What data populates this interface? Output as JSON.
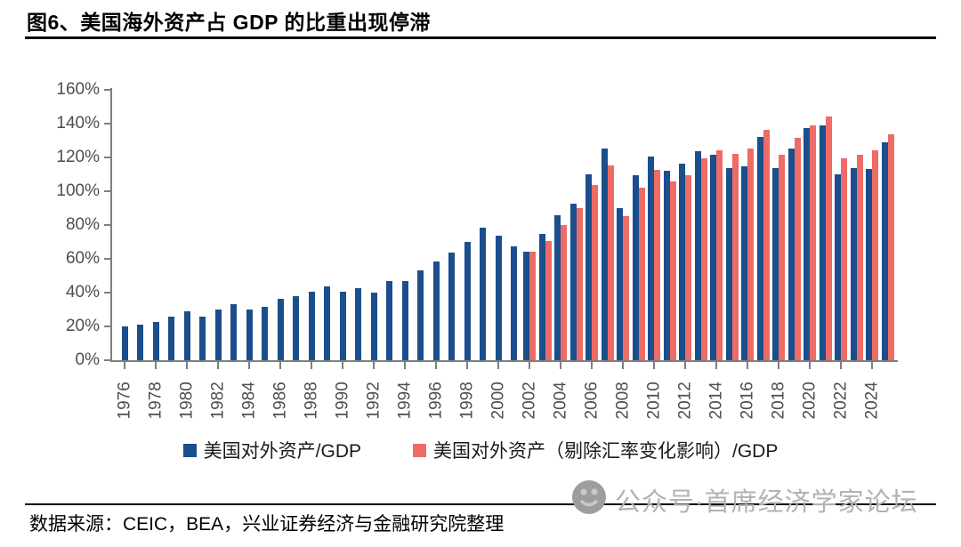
{
  "title": "图6、美国海外资产占 GDP 的比重出现停滞",
  "source_note": "数据来源：CEIC，BEA，兴业证券经济与金融研究院整理",
  "watermark": {
    "icon": "wechat-account-logo",
    "text": "公众号·首席经济学家论坛"
  },
  "legend": [
    {
      "label": "美国对外资产/GDP",
      "color": "#1b4e8c"
    },
    {
      "label": "美国对外资产（剔除汇率变化影响）/GDP",
      "color": "#ee6b66"
    }
  ],
  "colors": {
    "series_blue": "#1b4e8c",
    "series_red": "#ee6b66",
    "axis": "#7f7f7f",
    "axis_label": "#4d4d4d",
    "watermark_gray": "#b2b2b2"
  },
  "chart_data": {
    "type": "bar",
    "title": "美国海外资产占 GDP 的比重",
    "xlabel": "",
    "ylabel": "",
    "ylim": [
      0,
      160
    ],
    "ytick_step": 20,
    "ytick_labels": [
      "0%",
      "20%",
      "40%",
      "60%",
      "80%",
      "100%",
      "120%",
      "140%",
      "160%"
    ],
    "xtick_labels": [
      "1976",
      "1978",
      "1980",
      "1982",
      "1984",
      "1986",
      "1988",
      "1990",
      "1992",
      "1994",
      "1996",
      "1998",
      "2000",
      "2002",
      "2004",
      "2006",
      "2008",
      "2010",
      "2012",
      "2014",
      "2016",
      "2018",
      "2020",
      "2022",
      "2024"
    ],
    "grid": false,
    "legend_position": "bottom",
    "categories": [
      1976,
      1977,
      1978,
      1979,
      1980,
      1981,
      1982,
      1983,
      1984,
      1985,
      1986,
      1987,
      1988,
      1989,
      1990,
      1991,
      1992,
      1993,
      1994,
      1995,
      1996,
      1997,
      1998,
      1999,
      2000,
      2001,
      2002,
      2003,
      2004,
      2005,
      2006,
      2007,
      2008,
      2009,
      2010,
      2011,
      2012,
      2013,
      2014,
      2015,
      2016,
      2017,
      2018,
      2019,
      2020,
      2021,
      2022,
      2023,
      2024,
      2025
    ],
    "series": [
      {
        "name": "美国对外资产/GDP",
        "color": "#1b4e8c",
        "values": [
          20,
          21,
          22.5,
          26,
          29,
          26,
          30,
          33,
          30,
          31.5,
          36.5,
          38,
          40.5,
          44,
          40.5,
          42.5,
          40,
          47,
          47,
          53,
          58.5,
          64,
          70,
          78.5,
          74,
          67.5,
          64.5,
          75,
          86,
          92.5,
          110,
          125.5,
          90,
          109.5,
          120.5,
          112,
          116.5,
          124,
          122,
          114,
          115,
          132.5,
          114,
          125.5,
          137.5,
          139,
          110,
          114,
          113.5,
          129
        ]
      },
      {
        "name": "美国对外资产（剔除汇率变化影响）/GDP",
        "color": "#ee6b66",
        "values": [
          null,
          null,
          null,
          null,
          null,
          null,
          null,
          null,
          null,
          null,
          null,
          null,
          null,
          null,
          null,
          null,
          null,
          null,
          null,
          null,
          null,
          null,
          null,
          null,
          null,
          null,
          64.5,
          70.5,
          80,
          90,
          104,
          115.5,
          85.5,
          102,
          113,
          106,
          109.5,
          119.5,
          124.5,
          122.5,
          125.5,
          136.5,
          121.5,
          132,
          139,
          144.5,
          119.5,
          121.5,
          124.5,
          134
        ]
      }
    ]
  }
}
